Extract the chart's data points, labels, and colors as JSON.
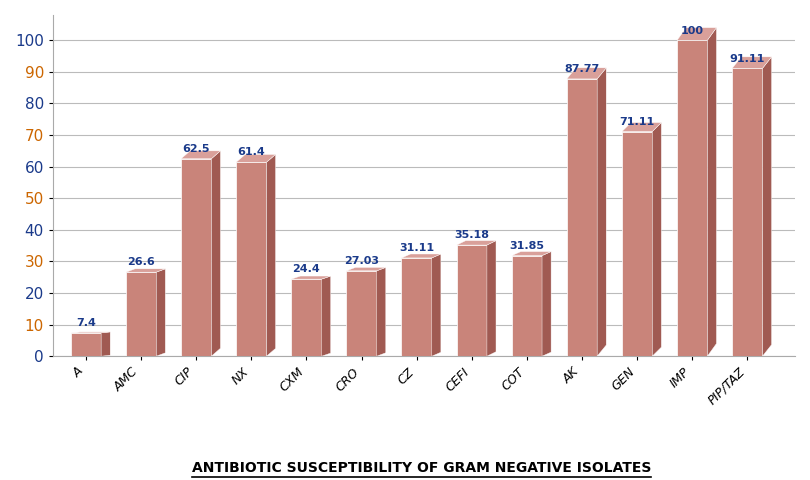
{
  "categories": [
    "A",
    "AMC",
    "CIP",
    "NX",
    "CXM",
    "CRO",
    "CZ",
    "CEFI",
    "COT",
    "AK",
    "GEN",
    "IMP",
    "PIP/TAZ"
  ],
  "values": [
    7.4,
    26.6,
    62.5,
    61.4,
    24.4,
    27.03,
    31.11,
    35.18,
    31.85,
    87.77,
    71.11,
    100,
    91.11
  ],
  "bar_face_color": "#c9847a",
  "bar_side_color": "#a05a52",
  "bar_top_color": "#d9a09a",
  "xlabel": "ANTIBIOTIC SUSCEPTIBILITY OF GRAM NEGATIVE ISOLATES",
  "ylabel": "",
  "ylim": [
    0,
    108
  ],
  "yticks": [
    0,
    10,
    20,
    30,
    40,
    50,
    60,
    70,
    80,
    90,
    100
  ],
  "background_color": "#ffffff",
  "plot_bg_color": "#ffffff",
  "grid_color": "#bbbbbb",
  "label_color_blue": "#1a3a8a",
  "label_color_orange": "#cc6600",
  "xlabel_fontsize": 10,
  "bar_label_fontsize": 8,
  "tick_label_fontsize": 9,
  "ytick_label_fontsize": 11,
  "bar_width": 0.55,
  "depth": 0.18
}
